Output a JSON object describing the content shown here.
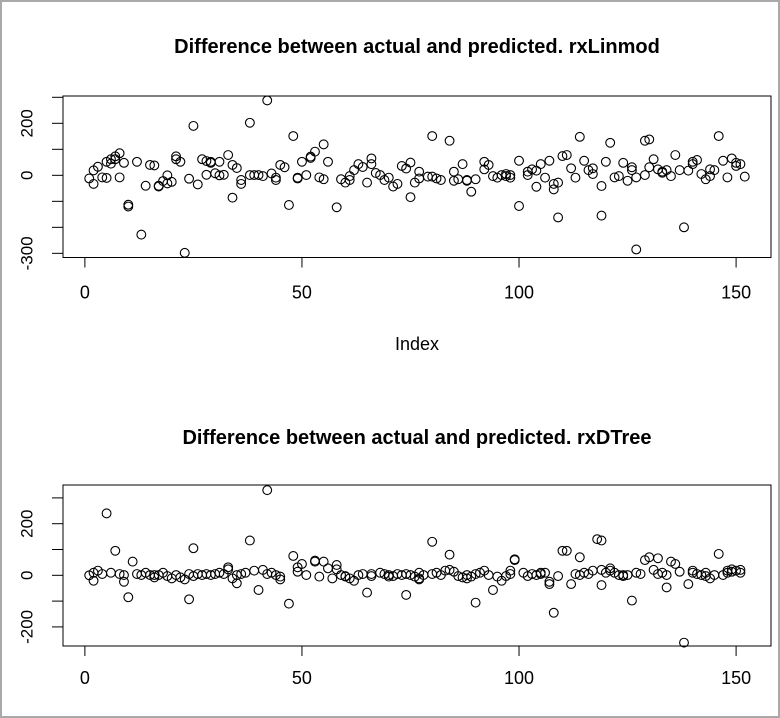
{
  "window": {
    "background": "#ffffff",
    "border_color": "#a9a9a9",
    "ink_color": "#000000"
  },
  "chart_data": [
    {
      "type": "scatter",
      "title": "Difference between actual and predicted. rxLinmod",
      "xlabel": "Index",
      "ylabel": "",
      "marker": "open-circle",
      "grid": false,
      "legend": null,
      "xlim": [
        -5.04,
        158.04
      ],
      "ylim": [
        -316,
        305
      ],
      "x_ticks": [
        0,
        50,
        100,
        150
      ],
      "x_tick_labels": [
        "0",
        "50",
        "100",
        "150"
      ],
      "y_ticks_all": [
        300,
        200,
        100,
        0,
        -100,
        -200,
        -300
      ],
      "y_tick_labels": [
        {
          "value": 200,
          "label": "200"
        },
        {
          "value": 0,
          "label": "0"
        },
        {
          "value": -300,
          "label": "-300"
        }
      ],
      "points": [
        [
          1,
          -12
        ],
        [
          2,
          -33
        ],
        [
          2,
          19
        ],
        [
          3,
          33
        ],
        [
          4,
          -8
        ],
        [
          5,
          -10
        ],
        [
          5,
          52
        ],
        [
          6,
          45
        ],
        [
          6,
          62
        ],
        [
          7,
          73
        ],
        [
          7,
          62
        ],
        [
          8,
          85
        ],
        [
          8,
          -8
        ],
        [
          9,
          48
        ],
        [
          10,
          -113
        ],
        [
          10,
          -120
        ],
        [
          12,
          52
        ],
        [
          13,
          -228
        ],
        [
          14,
          -40
        ],
        [
          15,
          40
        ],
        [
          16,
          38
        ],
        [
          17,
          -43
        ],
        [
          17,
          -40
        ],
        [
          18,
          -22
        ],
        [
          19,
          0
        ],
        [
          19,
          -31
        ],
        [
          20,
          -25
        ],
        [
          21,
          62
        ],
        [
          21,
          73
        ],
        [
          22,
          52
        ],
        [
          23,
          -298
        ],
        [
          24,
          -13
        ],
        [
          25,
          190
        ],
        [
          26,
          -35
        ],
        [
          27,
          62
        ],
        [
          28,
          55
        ],
        [
          28,
          2
        ],
        [
          29,
          48
        ],
        [
          29,
          52
        ],
        [
          30,
          8
        ],
        [
          31,
          52
        ],
        [
          31,
          0
        ],
        [
          32,
          2
        ],
        [
          33,
          78
        ],
        [
          34,
          40
        ],
        [
          34,
          -86
        ],
        [
          35,
          28
        ],
        [
          36,
          -18
        ],
        [
          36,
          -33
        ],
        [
          38,
          1
        ],
        [
          38,
          202
        ],
        [
          39,
          1
        ],
        [
          40,
          1
        ],
        [
          41,
          -3
        ],
        [
          42,
          288
        ],
        [
          43,
          7
        ],
        [
          44,
          -9
        ],
        [
          44,
          -18
        ],
        [
          45,
          40
        ],
        [
          46,
          31
        ],
        [
          47,
          -114
        ],
        [
          48,
          151
        ],
        [
          49,
          -12
        ],
        [
          49,
          -9
        ],
        [
          50,
          52
        ],
        [
          51,
          1
        ],
        [
          52,
          67
        ],
        [
          52,
          72
        ],
        [
          53,
          91
        ],
        [
          54,
          -8
        ],
        [
          55,
          119
        ],
        [
          55,
          -15
        ],
        [
          56,
          52
        ],
        [
          58,
          -123
        ],
        [
          59,
          -15
        ],
        [
          60,
          -28
        ],
        [
          61,
          -18
        ],
        [
          61,
          -3
        ],
        [
          62,
          20
        ],
        [
          63,
          43
        ],
        [
          64,
          32
        ],
        [
          65,
          -28
        ],
        [
          66,
          43
        ],
        [
          66,
          65
        ],
        [
          67,
          9
        ],
        [
          68,
          1
        ],
        [
          69,
          -18
        ],
        [
          70,
          -9
        ],
        [
          71,
          -43
        ],
        [
          72,
          -33
        ],
        [
          73,
          36
        ],
        [
          74,
          26
        ],
        [
          75,
          49
        ],
        [
          75,
          -84
        ],
        [
          76,
          -28
        ],
        [
          77,
          -12
        ],
        [
          77,
          14
        ],
        [
          79,
          -5
        ],
        [
          80,
          151
        ],
        [
          80,
          -5
        ],
        [
          81,
          -12
        ],
        [
          82,
          -18
        ],
        [
          84,
          133
        ],
        [
          85,
          14
        ],
        [
          85,
          -21
        ],
        [
          86,
          -15
        ],
        [
          87,
          43
        ],
        [
          88,
          -18
        ],
        [
          88,
          -21
        ],
        [
          89,
          -63
        ],
        [
          90,
          -15
        ],
        [
          92,
          23
        ],
        [
          92,
          52
        ],
        [
          93,
          40
        ],
        [
          94,
          -3
        ],
        [
          95,
          -9
        ],
        [
          96,
          1
        ],
        [
          97,
          -3
        ],
        [
          97,
          5
        ],
        [
          98,
          1
        ],
        [
          98,
          -9
        ],
        [
          100,
          -118
        ],
        [
          100,
          56
        ],
        [
          102,
          14
        ],
        [
          102,
          1
        ],
        [
          103,
          23
        ],
        [
          104,
          -44
        ],
        [
          104,
          18
        ],
        [
          105,
          43
        ],
        [
          106,
          -9
        ],
        [
          107,
          56
        ],
        [
          108,
          -54
        ],
        [
          108,
          -33
        ],
        [
          109,
          -162
        ],
        [
          109,
          -28
        ],
        [
          110,
          74
        ],
        [
          111,
          78
        ],
        [
          112,
          27
        ],
        [
          113,
          -9
        ],
        [
          114,
          148
        ],
        [
          115,
          56
        ],
        [
          116,
          20
        ],
        [
          117,
          5
        ],
        [
          117,
          27
        ],
        [
          119,
          -41
        ],
        [
          119,
          -155
        ],
        [
          120,
          52
        ],
        [
          121,
          125
        ],
        [
          122,
          -8
        ],
        [
          123,
          -3
        ],
        [
          124,
          48
        ],
        [
          125,
          -21
        ],
        [
          126,
          20
        ],
        [
          126,
          31
        ],
        [
          127,
          -285
        ],
        [
          127,
          -8
        ],
        [
          129,
          1
        ],
        [
          129,
          133
        ],
        [
          130,
          138
        ],
        [
          130,
          31
        ],
        [
          131,
          62
        ],
        [
          132,
          23
        ],
        [
          133,
          10
        ],
        [
          133,
          14
        ],
        [
          134,
          20
        ],
        [
          135,
          -3
        ],
        [
          136,
          78
        ],
        [
          137,
          20
        ],
        [
          138,
          -200
        ],
        [
          139,
          18
        ],
        [
          140,
          43
        ],
        [
          140,
          52
        ],
        [
          141,
          59
        ],
        [
          142,
          5
        ],
        [
          143,
          -15
        ],
        [
          144,
          -3
        ],
        [
          144,
          23
        ],
        [
          145,
          20
        ],
        [
          146,
          151
        ],
        [
          147,
          56
        ],
        [
          148,
          -8
        ],
        [
          149,
          65
        ],
        [
          150,
          48
        ],
        [
          150,
          36
        ],
        [
          151,
          43
        ],
        [
          152,
          -5
        ]
      ]
    },
    {
      "type": "scatter",
      "title": "Difference between actual and predicted. rxDTree",
      "xlabel": "",
      "ylabel": "",
      "marker": "open-circle",
      "grid": false,
      "legend": null,
      "xlim": [
        -5.04,
        158.04
      ],
      "ylim": [
        -274,
        350
      ],
      "x_ticks": [
        0,
        50,
        100,
        150
      ],
      "x_tick_labels": [
        "0",
        "50",
        "100",
        "150"
      ],
      "y_ticks_all": [
        300,
        200,
        100,
        0,
        -100,
        -200
      ],
      "y_tick_labels": [
        {
          "value": 200,
          "label": "200"
        },
        {
          "value": 0,
          "label": "0"
        },
        {
          "value": -200,
          "label": "-200"
        }
      ],
      "points": [
        [
          1,
          0
        ],
        [
          2,
          10
        ],
        [
          2,
          -21
        ],
        [
          3,
          18
        ],
        [
          4,
          5
        ],
        [
          5,
          240
        ],
        [
          6,
          10
        ],
        [
          7,
          95
        ],
        [
          8,
          5
        ],
        [
          9,
          1
        ],
        [
          9,
          -25
        ],
        [
          10,
          -85
        ],
        [
          11,
          53
        ],
        [
          12,
          5
        ],
        [
          13,
          1
        ],
        [
          14,
          10
        ],
        [
          15,
          1
        ],
        [
          16,
          1
        ],
        [
          16,
          -8
        ],
        [
          17,
          1
        ],
        [
          18,
          10
        ],
        [
          19,
          -3
        ],
        [
          20,
          -12
        ],
        [
          21,
          1
        ],
        [
          22,
          -8
        ],
        [
          23,
          -16
        ],
        [
          24,
          5
        ],
        [
          24,
          -93
        ],
        [
          25,
          105
        ],
        [
          25,
          -3
        ],
        [
          26,
          5
        ],
        [
          27,
          1
        ],
        [
          28,
          5
        ],
        [
          29,
          1
        ],
        [
          30,
          5
        ],
        [
          31,
          10
        ],
        [
          32,
          5
        ],
        [
          33,
          23
        ],
        [
          33,
          31
        ],
        [
          34,
          -12
        ],
        [
          35,
          -31
        ],
        [
          35,
          1
        ],
        [
          36,
          5
        ],
        [
          37,
          10
        ],
        [
          38,
          135
        ],
        [
          39,
          18
        ],
        [
          40,
          -57
        ],
        [
          41,
          21
        ],
        [
          42,
          330
        ],
        [
          42,
          5
        ],
        [
          43,
          10
        ],
        [
          44,
          1
        ],
        [
          45,
          -5
        ],
        [
          45,
          -16
        ],
        [
          47,
          -110
        ],
        [
          48,
          75
        ],
        [
          49,
          31
        ],
        [
          49,
          14
        ],
        [
          50,
          44
        ],
        [
          51,
          1
        ],
        [
          53,
          57
        ],
        [
          53,
          53
        ],
        [
          54,
          -5
        ],
        [
          55,
          53
        ],
        [
          56,
          27
        ],
        [
          57,
          -12
        ],
        [
          58,
          40
        ],
        [
          58,
          23
        ],
        [
          59,
          1
        ],
        [
          60,
          -5
        ],
        [
          60,
          -3
        ],
        [
          61,
          -12
        ],
        [
          62,
          -21
        ],
        [
          63,
          1
        ],
        [
          64,
          5
        ],
        [
          65,
          -67
        ],
        [
          66,
          -3
        ],
        [
          66,
          5
        ],
        [
          68,
          10
        ],
        [
          69,
          5
        ],
        [
          70,
          1
        ],
        [
          70,
          -5
        ],
        [
          71,
          -3
        ],
        [
          72,
          5
        ],
        [
          73,
          1
        ],
        [
          74,
          -76
        ],
        [
          74,
          5
        ],
        [
          75,
          1
        ],
        [
          76,
          -5
        ],
        [
          77,
          -12
        ],
        [
          77,
          -16
        ],
        [
          77,
          10
        ],
        [
          78,
          1
        ],
        [
          80,
          5
        ],
        [
          80,
          130
        ],
        [
          81,
          10
        ],
        [
          82,
          1
        ],
        [
          83,
          18
        ],
        [
          84,
          80
        ],
        [
          84,
          21
        ],
        [
          85,
          14
        ],
        [
          86,
          -3
        ],
        [
          87,
          -8
        ],
        [
          88,
          1
        ],
        [
          88,
          -12
        ],
        [
          89,
          -5
        ],
        [
          90,
          -106
        ],
        [
          90,
          5
        ],
        [
          91,
          10
        ],
        [
          92,
          18
        ],
        [
          93,
          1
        ],
        [
          94,
          -57
        ],
        [
          95,
          -5
        ],
        [
          96,
          -21
        ],
        [
          97,
          -3
        ],
        [
          98,
          18
        ],
        [
          98,
          5
        ],
        [
          99,
          59
        ],
        [
          99,
          62
        ],
        [
          101,
          10
        ],
        [
          102,
          -3
        ],
        [
          103,
          5
        ],
        [
          104,
          1
        ],
        [
          105,
          10
        ],
        [
          105,
          5
        ],
        [
          106,
          10
        ],
        [
          107,
          -25
        ],
        [
          107,
          -34
        ],
        [
          108,
          -145
        ],
        [
          109,
          -3
        ],
        [
          110,
          95
        ],
        [
          111,
          95
        ],
        [
          112,
          -34
        ],
        [
          113,
          5
        ],
        [
          114,
          70
        ],
        [
          114,
          1
        ],
        [
          115,
          10
        ],
        [
          116,
          5
        ],
        [
          117,
          18
        ],
        [
          118,
          140
        ],
        [
          119,
          135
        ],
        [
          119,
          21
        ],
        [
          119,
          -38
        ],
        [
          120,
          10
        ],
        [
          121,
          27
        ],
        [
          121,
          18
        ],
        [
          122,
          10
        ],
        [
          123,
          1
        ],
        [
          124,
          -3
        ],
        [
          124,
          1
        ],
        [
          125,
          1
        ],
        [
          126,
          -98
        ],
        [
          127,
          10
        ],
        [
          128,
          5
        ],
        [
          129,
          59
        ],
        [
          130,
          70
        ],
        [
          131,
          21
        ],
        [
          132,
          66
        ],
        [
          132,
          5
        ],
        [
          133,
          10
        ],
        [
          134,
          1
        ],
        [
          134,
          -47
        ],
        [
          135,
          53
        ],
        [
          136,
          44
        ],
        [
          137,
          14
        ],
        [
          138,
          -261
        ],
        [
          139,
          -34
        ],
        [
          140,
          10
        ],
        [
          140,
          18
        ],
        [
          141,
          5
        ],
        [
          142,
          1
        ],
        [
          143,
          10
        ],
        [
          143,
          -3
        ],
        [
          144,
          -12
        ],
        [
          145,
          1
        ],
        [
          146,
          83
        ],
        [
          147,
          1
        ],
        [
          148,
          10
        ],
        [
          148,
          18
        ],
        [
          149,
          14
        ],
        [
          149,
          23
        ],
        [
          150,
          18
        ],
        [
          151,
          21
        ],
        [
          151,
          10
        ]
      ]
    }
  ]
}
